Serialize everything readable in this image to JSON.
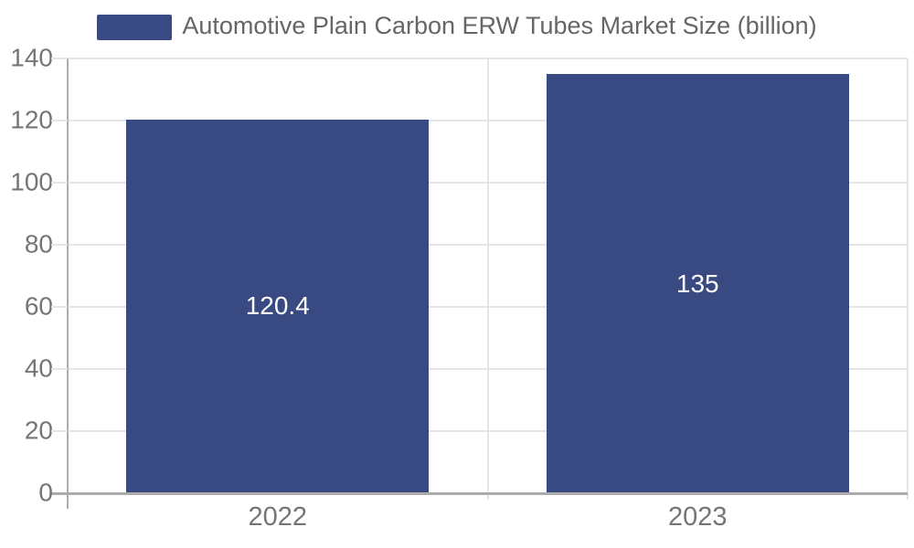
{
  "colors": {
    "background": "#ffffff",
    "bar": "#384a81",
    "legend_text": "#666666",
    "axis_text": "#757575",
    "gridline": "#e5e5e5",
    "x_axis_line": "#ababab",
    "y_axis_line": "#ababab",
    "data_label_text": "#ffffff"
  },
  "chart_data": {
    "type": "bar",
    "title": "",
    "legend": "Automotive Plain Carbon ERW Tubes Market Size (billion)",
    "legend_position": "top-center",
    "categories": [
      "2022",
      "2023"
    ],
    "series": [
      {
        "name": "Automotive Plain Carbon ERW Tubes Market Size (billion)",
        "values": [
          120.4,
          135
        ],
        "value_labels": [
          "120.4",
          "135"
        ]
      }
    ],
    "xlabel": "",
    "ylabel": "",
    "ylim": [
      0,
      140
    ],
    "yticks": [
      0,
      20,
      40,
      60,
      80,
      100,
      120,
      140
    ],
    "grid": true,
    "bar_labels_inside": true,
    "bar_width_fraction": 0.72
  }
}
